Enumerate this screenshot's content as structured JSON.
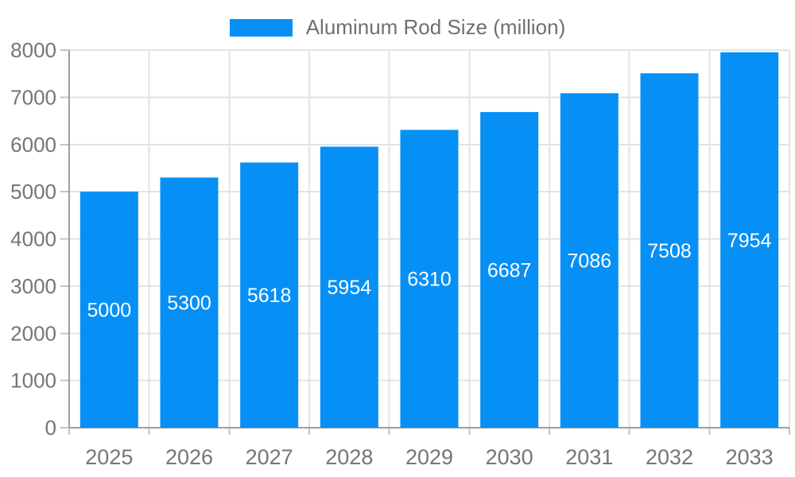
{
  "chart_data": {
    "type": "bar",
    "title": "",
    "legend": {
      "label": "Aluminum Rod Size (million)",
      "position": "top-center"
    },
    "categories": [
      "2025",
      "2026",
      "2027",
      "2028",
      "2029",
      "2030",
      "2031",
      "2032",
      "2033"
    ],
    "series": [
      {
        "name": "Aluminum Rod Size (million)",
        "values": [
          5000,
          5300,
          5618,
          5954,
          6310,
          6687,
          7086,
          7508,
          7954
        ]
      }
    ],
    "data_labels": [
      "5000",
      "5300",
      "5618",
      "5954",
      "6310",
      "6687",
      "7086",
      "7508",
      "7954"
    ],
    "xlabel": "",
    "ylabel": "",
    "ylim": [
      0,
      8000
    ],
    "ytick_step": 1000,
    "ytick_labels": [
      "0",
      "1000",
      "2000",
      "3000",
      "4000",
      "5000",
      "6000",
      "7000",
      "8000"
    ],
    "grid": true,
    "colors": {
      "bar": "#0690F5",
      "grid_line": "#e3e3e3",
      "axis_line": "#9e9e9e",
      "tick_mark": "#c4c4c4",
      "axis_label": "#757575",
      "data_label": "#ffffff",
      "legend_text": "#6f6f6f",
      "background": "#ffffff"
    }
  }
}
